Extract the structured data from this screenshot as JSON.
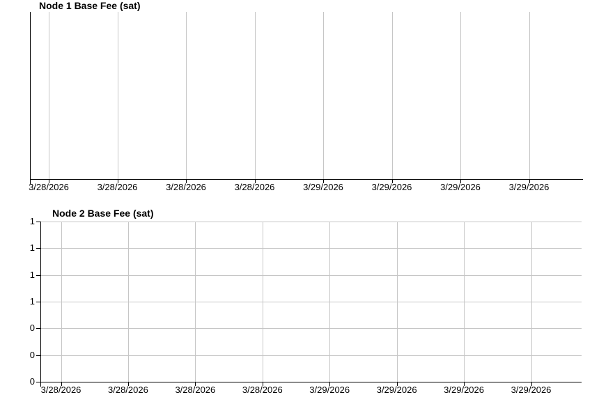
{
  "page": {
    "background": "#ffffff"
  },
  "colors": {
    "axis": "#000000",
    "gridline": "#c6c6c6",
    "title_text": "#000000",
    "tick_text": "#000000"
  },
  "chart_data": [
    {
      "type": "line",
      "title": "Node 1 Base Fee (sat)",
      "xlabel": "",
      "ylabel": "",
      "x_tick_labels": [
        "3/28/2026",
        "3/28/2026",
        "3/28/2026",
        "3/28/2026",
        "3/29/2026",
        "3/29/2026",
        "3/29/2026",
        "3/29/2026"
      ],
      "y_tick_labels": [],
      "series": [],
      "grid": {
        "vertical": true,
        "horizontal": false
      },
      "legend": "none"
    },
    {
      "type": "line",
      "title": "Node 2 Base Fee (sat)",
      "xlabel": "",
      "ylabel": "",
      "x_tick_labels": [
        "3/28/2026",
        "3/28/2026",
        "3/28/2026",
        "3/28/2026",
        "3/29/2026",
        "3/29/2026",
        "3/29/2026",
        "3/29/2026"
      ],
      "y_tick_labels": [
        "1",
        "1",
        "1",
        "1",
        "0",
        "0",
        "0"
      ],
      "ylim": [
        0,
        1
      ],
      "series": [],
      "grid": {
        "vertical": true,
        "horizontal": true
      },
      "legend": "none"
    }
  ]
}
